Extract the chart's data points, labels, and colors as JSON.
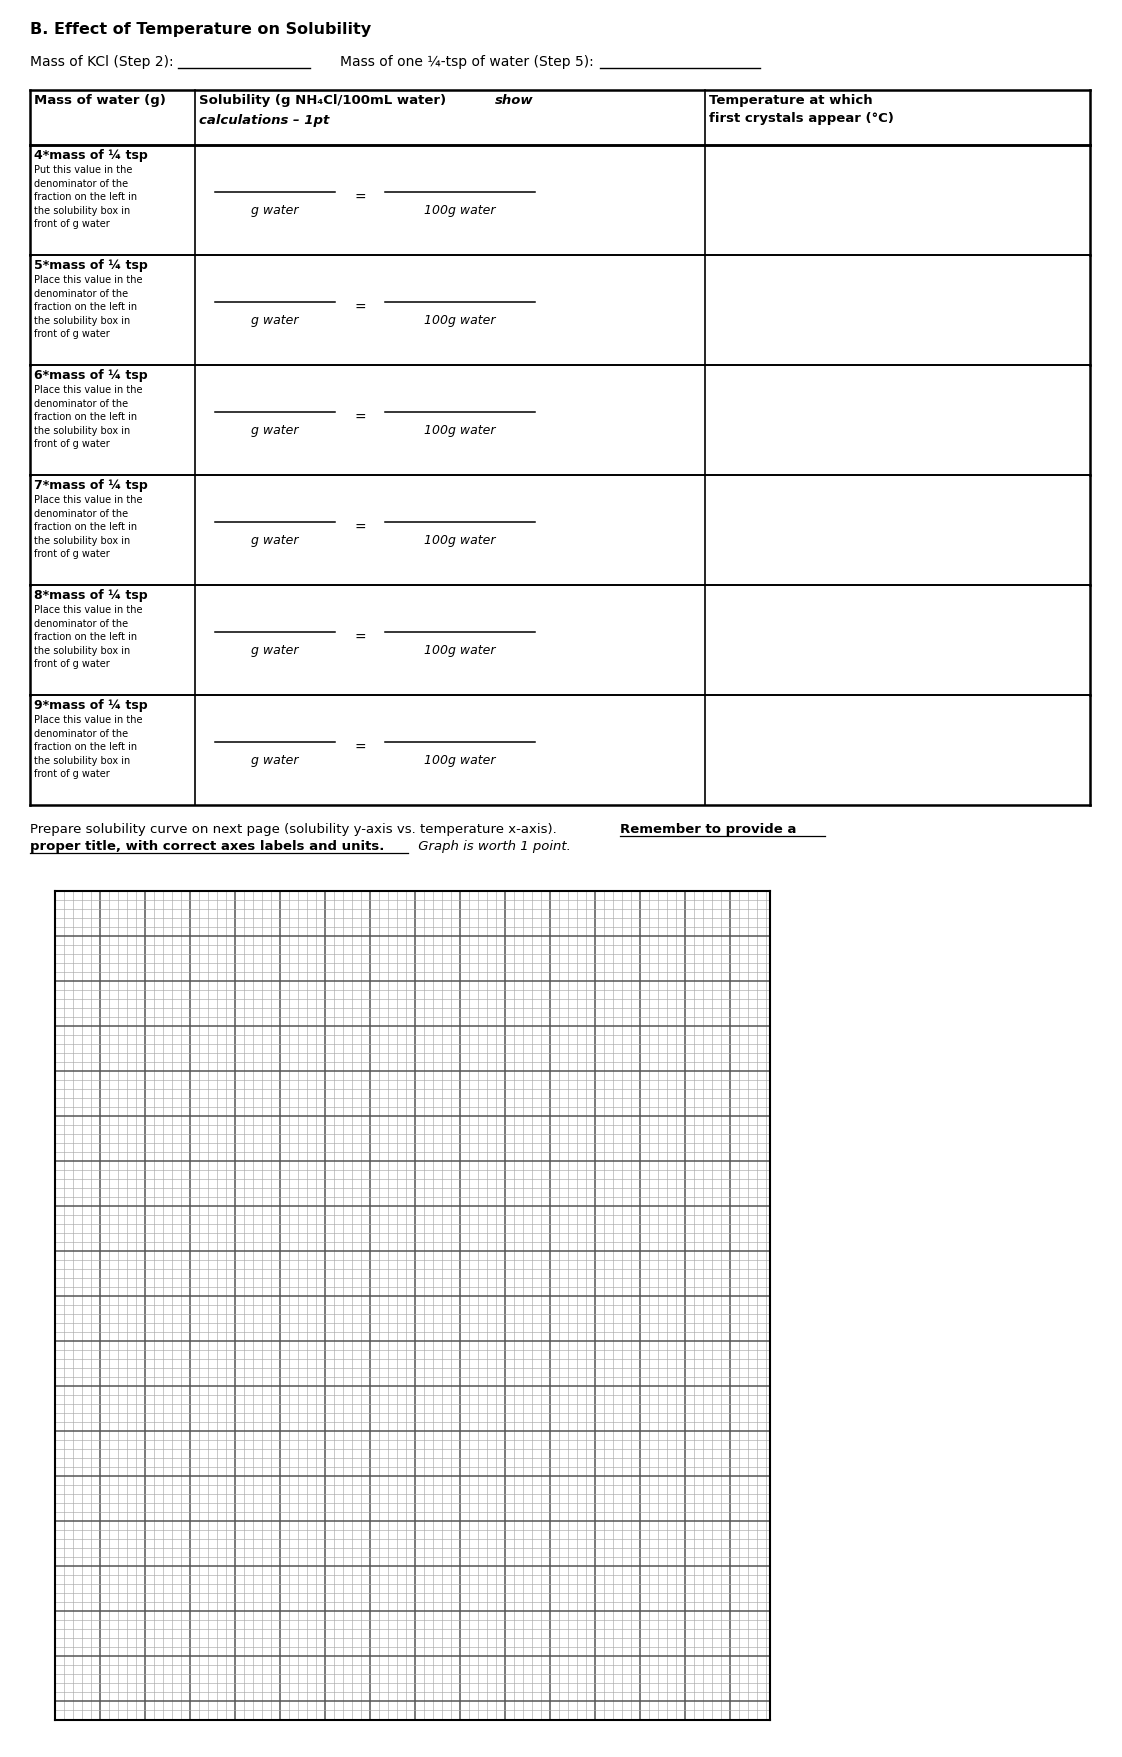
{
  "title": "B. Effect of Temperature on Solubility",
  "col_headers": [
    "Mass of water (g)",
    "Solubility (g NH₄Cl/100mL water) show\ncalculations – 1pt",
    "Temperature at which\nfirst crystals appear (°C)"
  ],
  "rows": [
    {
      "label": "4*mass of ¼ tsp",
      "sub": "Put this value in the\ndenominator of the\nfraction on the left in\nthe solubility box in\nfront of g water"
    },
    {
      "label": "5*mass of ¼ tsp",
      "sub": "Place this value in the\ndenominator of the\nfraction on the left in\nthe solubility box in\nfront of g water"
    },
    {
      "label": "6*mass of ¼ tsp",
      "sub": "Place this value in the\ndenominator of the\nfraction on the left in\nthe solubility box in\nfront of g water"
    },
    {
      "label": "7*mass of ¼ tsp",
      "sub": "Place this value in the\ndenominator of the\nfraction on the left in\nthe solubility box in\nfront of g water"
    },
    {
      "label": "8*mass of ¼ tsp",
      "sub": "Place this value in the\ndenominator of the\nfraction on the left in\nthe solubility box in\nfront of g water"
    },
    {
      "label": "9*mass of ¼ tsp",
      "sub": "Place this value in the\ndenominator of the\nfraction on the left in\nthe solubility box in\nfront of g water"
    }
  ],
  "bg_color": "#ffffff",
  "minor_color": "#aaaaaa",
  "major_color": "#555555"
}
